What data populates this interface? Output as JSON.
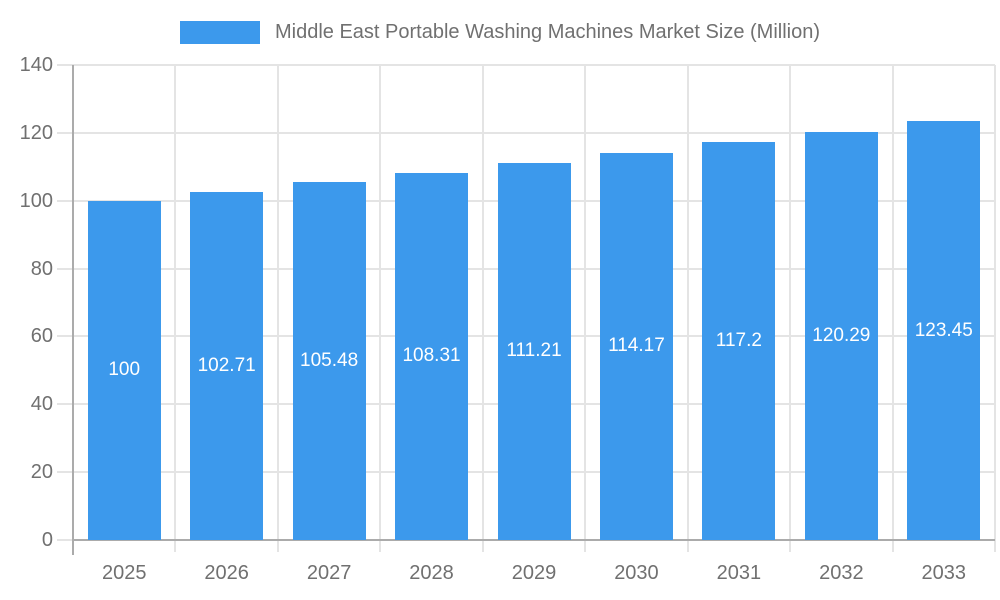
{
  "legend": {
    "label": "Middle East Portable Washing Machines Market Size (Million)"
  },
  "chart_data": {
    "type": "bar",
    "title": "Middle East Portable Washing Machines Market Size (Million)",
    "categories": [
      "2025",
      "2026",
      "2027",
      "2028",
      "2029",
      "2030",
      "2031",
      "2032",
      "2033"
    ],
    "values": [
      100,
      102.71,
      105.48,
      108.31,
      111.21,
      114.17,
      117.2,
      120.29,
      123.45
    ],
    "value_labels": [
      "100",
      "102.71",
      "105.48",
      "108.31",
      "111.21",
      "114.17",
      "117.2",
      "120.29",
      "123.45"
    ],
    "xlabel": "",
    "ylabel": "",
    "ylim": [
      0,
      140
    ],
    "yticks": [
      0,
      20,
      40,
      60,
      80,
      100,
      120,
      140
    ],
    "grid": true,
    "legend_position": "top",
    "colors": {
      "bar": "#3C99EC",
      "axis_line": "#ababab",
      "grid_line": "#e4e4e4",
      "tick_label": "#707070",
      "value_label": "#ffffff",
      "background": "#ffffff"
    }
  }
}
